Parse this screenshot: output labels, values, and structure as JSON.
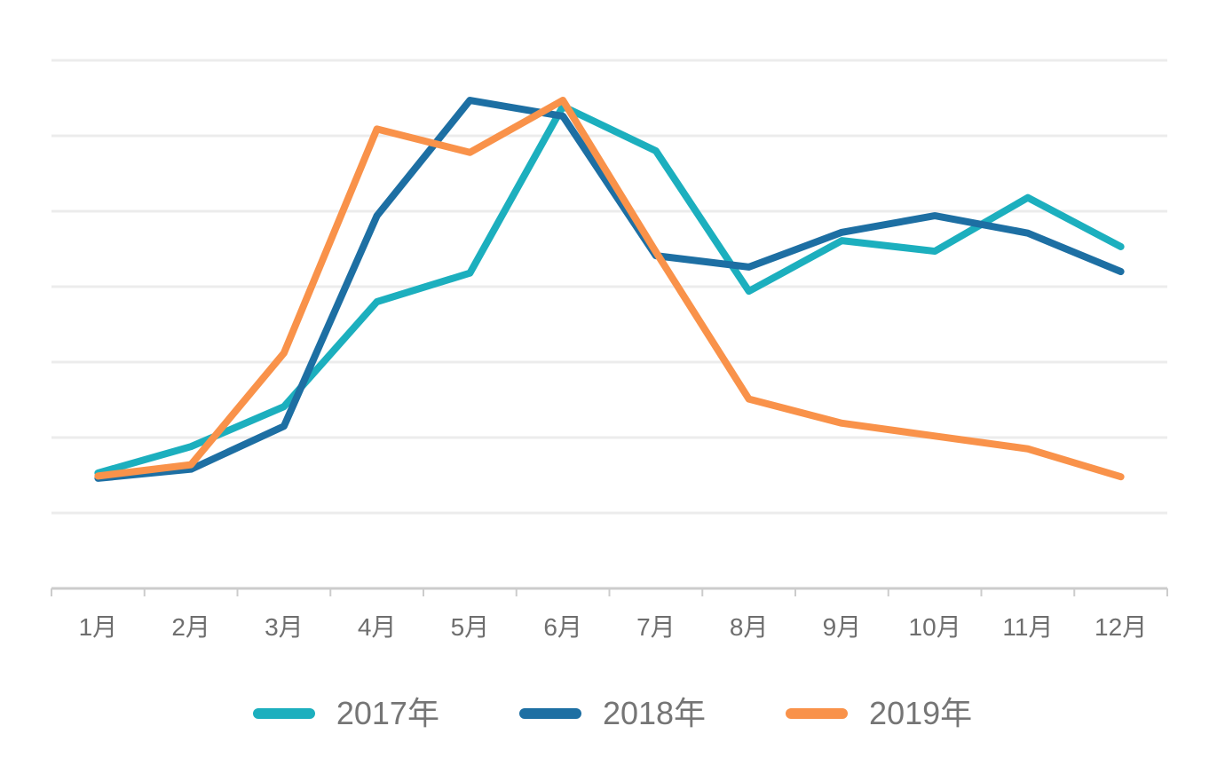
{
  "page": {
    "background": "#ffffff",
    "title": ""
  },
  "chart_data": {
    "type": "line",
    "title": "",
    "xlabel": "",
    "ylabel": "",
    "categories": [
      "1月",
      "2月",
      "3月",
      "4月",
      "5月",
      "6月",
      "7月",
      "8月",
      "9月",
      "10月",
      "11月",
      "12月"
    ],
    "series": [
      {
        "name": "2017年",
        "color": "#1CAFBE",
        "values": [
          1.53,
          1.88,
          2.41,
          3.8,
          4.18,
          6.39,
          5.8,
          3.94,
          4.61,
          4.47,
          5.18,
          4.53
        ]
      },
      {
        "name": "2018年",
        "color": "#1D6FA3",
        "values": [
          1.46,
          1.58,
          2.15,
          4.94,
          6.47,
          6.26,
          4.41,
          4.26,
          4.72,
          4.94,
          4.71,
          4.2
        ]
      },
      {
        "name": "2019年",
        "color": "#F9924A",
        "values": [
          1.49,
          1.64,
          3.12,
          6.09,
          5.78,
          6.47,
          4.46,
          2.51,
          2.19,
          2.02,
          1.85,
          1.48
        ]
      }
    ],
    "ylim": [
      0,
      7
    ],
    "y_axis_labels_visible": false,
    "y_unit_note": "y axis unlabeled in source; values expressed in gridline units (1.0 = one gridline interval above baseline)",
    "grid": true,
    "gridline_levels": 7,
    "legend_position": "bottom",
    "legend_entries": [
      "2017年",
      "2018年",
      "2019年"
    ]
  },
  "style": {
    "gridline_color": "#ececec",
    "axis_color": "#cccccc",
    "x_label_color": "#6e6e6e",
    "legend_text_color": "#757575"
  }
}
